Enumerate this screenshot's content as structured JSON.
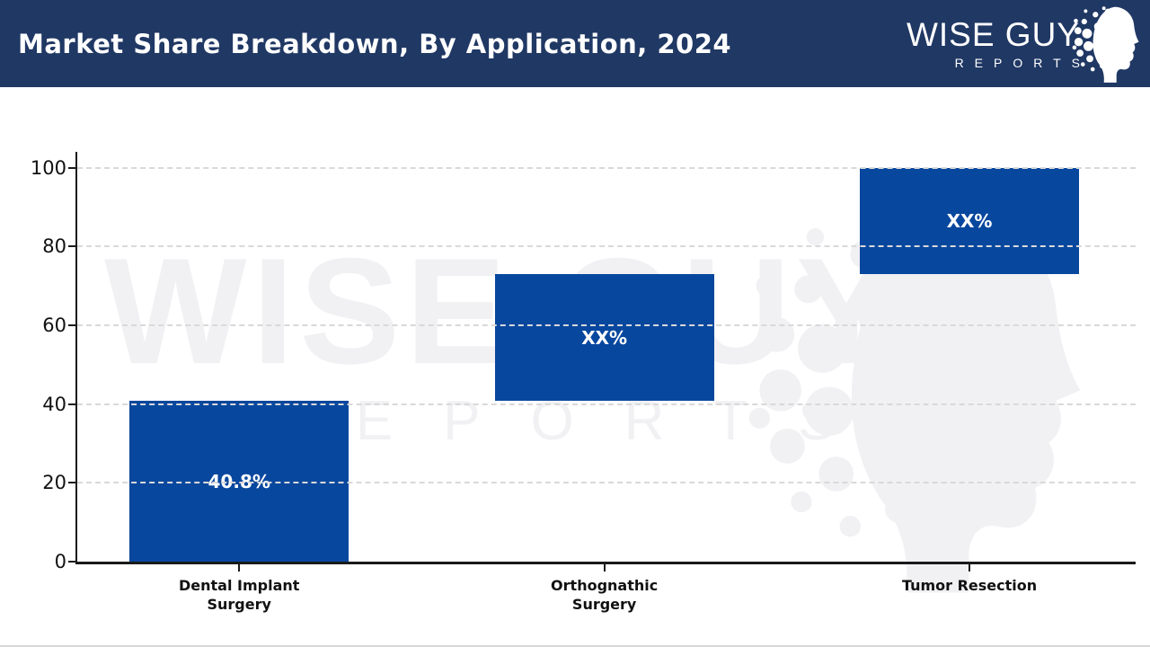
{
  "header": {
    "title": "Market Share Breakdown, By Application, 2024",
    "logo": {
      "wordmark": "WISE GUY",
      "subtext": "REPORTS"
    }
  },
  "watermark": {
    "wordmark": "WISE GUY",
    "subtext": "REPORTS"
  },
  "chart_data": {
    "type": "bar",
    "variant": "floating-segment-waterfall",
    "title": "Market Share Breakdown, By Application, 2024",
    "categories": [
      "Dental Implant\nSurgery",
      "Orthognathic\nSurgery",
      "Tumor Resection"
    ],
    "segments": [
      {
        "category": "Dental Implant Surgery",
        "start": 0,
        "end": 40.8,
        "label": "40.8%"
      },
      {
        "category": "Orthognathic Surgery",
        "start": 40.8,
        "end": 73,
        "label": "XX%"
      },
      {
        "category": "Tumor Resection",
        "start": 73,
        "end": 100,
        "label": "XX%"
      }
    ],
    "xlabel": "",
    "ylabel": "",
    "yticks": [
      0,
      20,
      40,
      60,
      80,
      100
    ],
    "ylim": [
      0,
      104
    ],
    "grid": "horizontal-dashed",
    "legend": "none"
  },
  "colors": {
    "header_bg": "#203864",
    "bar": "#08479e",
    "bar_label": "#ffffff",
    "grid": "#d9d9d9",
    "axis": "#1a1a1a",
    "watermark": "#f1f1f4"
  }
}
